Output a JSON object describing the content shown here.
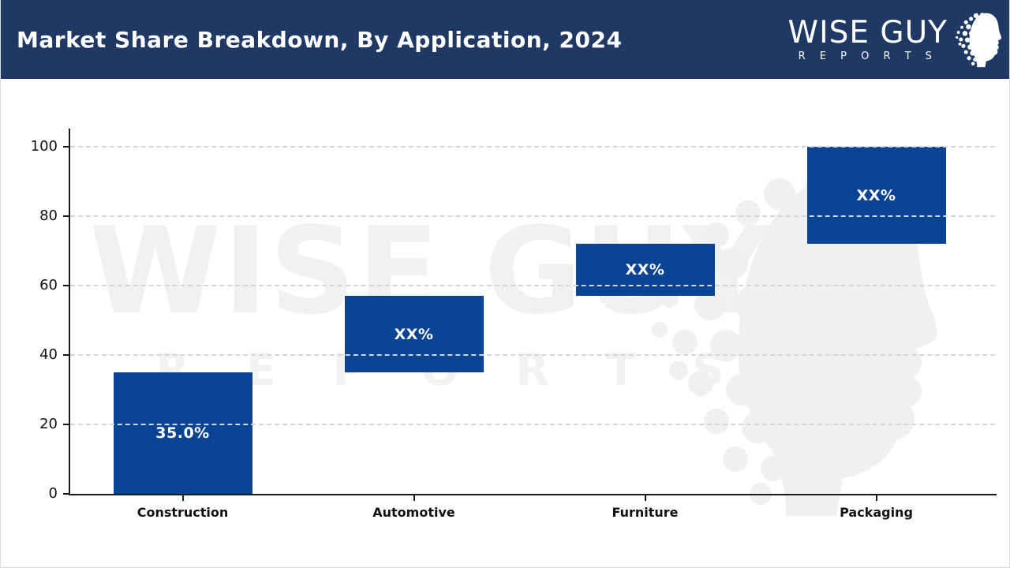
{
  "header": {
    "title": "Market Share Breakdown, By Application, 2024",
    "logo": {
      "line1": "WISE GUY",
      "line2": "R E P O R T S"
    }
  },
  "watermark": {
    "line1": "WISE GUY",
    "line2": "R E P O R T S"
  },
  "chart_data": {
    "type": "bar",
    "subtype": "waterfall",
    "title": "Market Share Breakdown, By Application, 2024",
    "categories": [
      "Construction",
      "Automotive",
      "Furniture",
      "Packaging"
    ],
    "segments": [
      {
        "category": "Construction",
        "start": 0,
        "end": 35,
        "value": 35.0,
        "label": "35.0%"
      },
      {
        "category": "Automotive",
        "start": 35,
        "end": 57,
        "value": null,
        "label": "XX%"
      },
      {
        "category": "Furniture",
        "start": 57,
        "end": 72,
        "value": null,
        "label": "XX%"
      },
      {
        "category": "Packaging",
        "start": 72,
        "end": 100,
        "value": null,
        "label": "XX%"
      }
    ],
    "xlabel": "",
    "ylabel": "",
    "ylim": [
      0,
      100
    ],
    "yticks": [
      0,
      20,
      40,
      60,
      80,
      100
    ],
    "grid": "horizontal-dashed",
    "legend": null,
    "colors": {
      "bar": "#084394",
      "bar_label": "#ffffff",
      "axis": "#1a1a1a",
      "gridline": "#d9d9d9",
      "header_bg": "#1f3864",
      "watermark": "#f1f1f1"
    }
  }
}
